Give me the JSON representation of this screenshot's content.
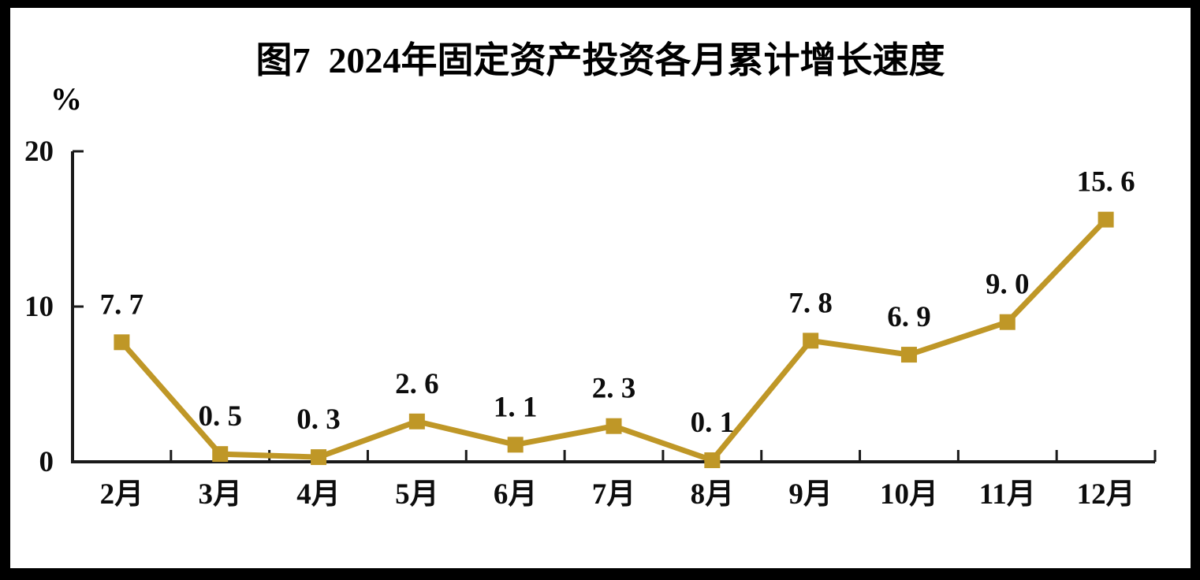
{
  "page": {
    "frame_color": "#000000",
    "paper_color": "#ffffff"
  },
  "title": {
    "text": "图7  2024年固定资产投资各月累计增长速度"
  },
  "y_axis": {
    "unit_label": "%"
  },
  "chart_data": {
    "type": "line",
    "title": "图7  2024年固定资产投资各月累计增长速度",
    "categories": [
      "2月",
      "3月",
      "4月",
      "5月",
      "6月",
      "7月",
      "8月",
      "9月",
      "10月",
      "11月",
      "12月"
    ],
    "values": [
      7.7,
      0.5,
      0.3,
      2.6,
      1.1,
      2.3,
      0.1,
      7.8,
      6.9,
      9.0,
      15.6
    ],
    "point_labels": [
      "7. 7",
      "0. 5",
      "0. 3",
      "2. 6",
      "1. 1",
      "2. 3",
      "0. 1",
      "7. 8",
      "6. 9",
      "9. 0",
      "15. 6"
    ],
    "xlabel": "",
    "ylabel": "%",
    "ylim": [
      0,
      20
    ],
    "yticks": [
      0,
      10,
      20
    ],
    "grid": false,
    "legend": "none",
    "marker": "square",
    "line_color": "#BF9727",
    "axis_color": "#1a1a1a",
    "text_color": "#0d0d0d"
  }
}
